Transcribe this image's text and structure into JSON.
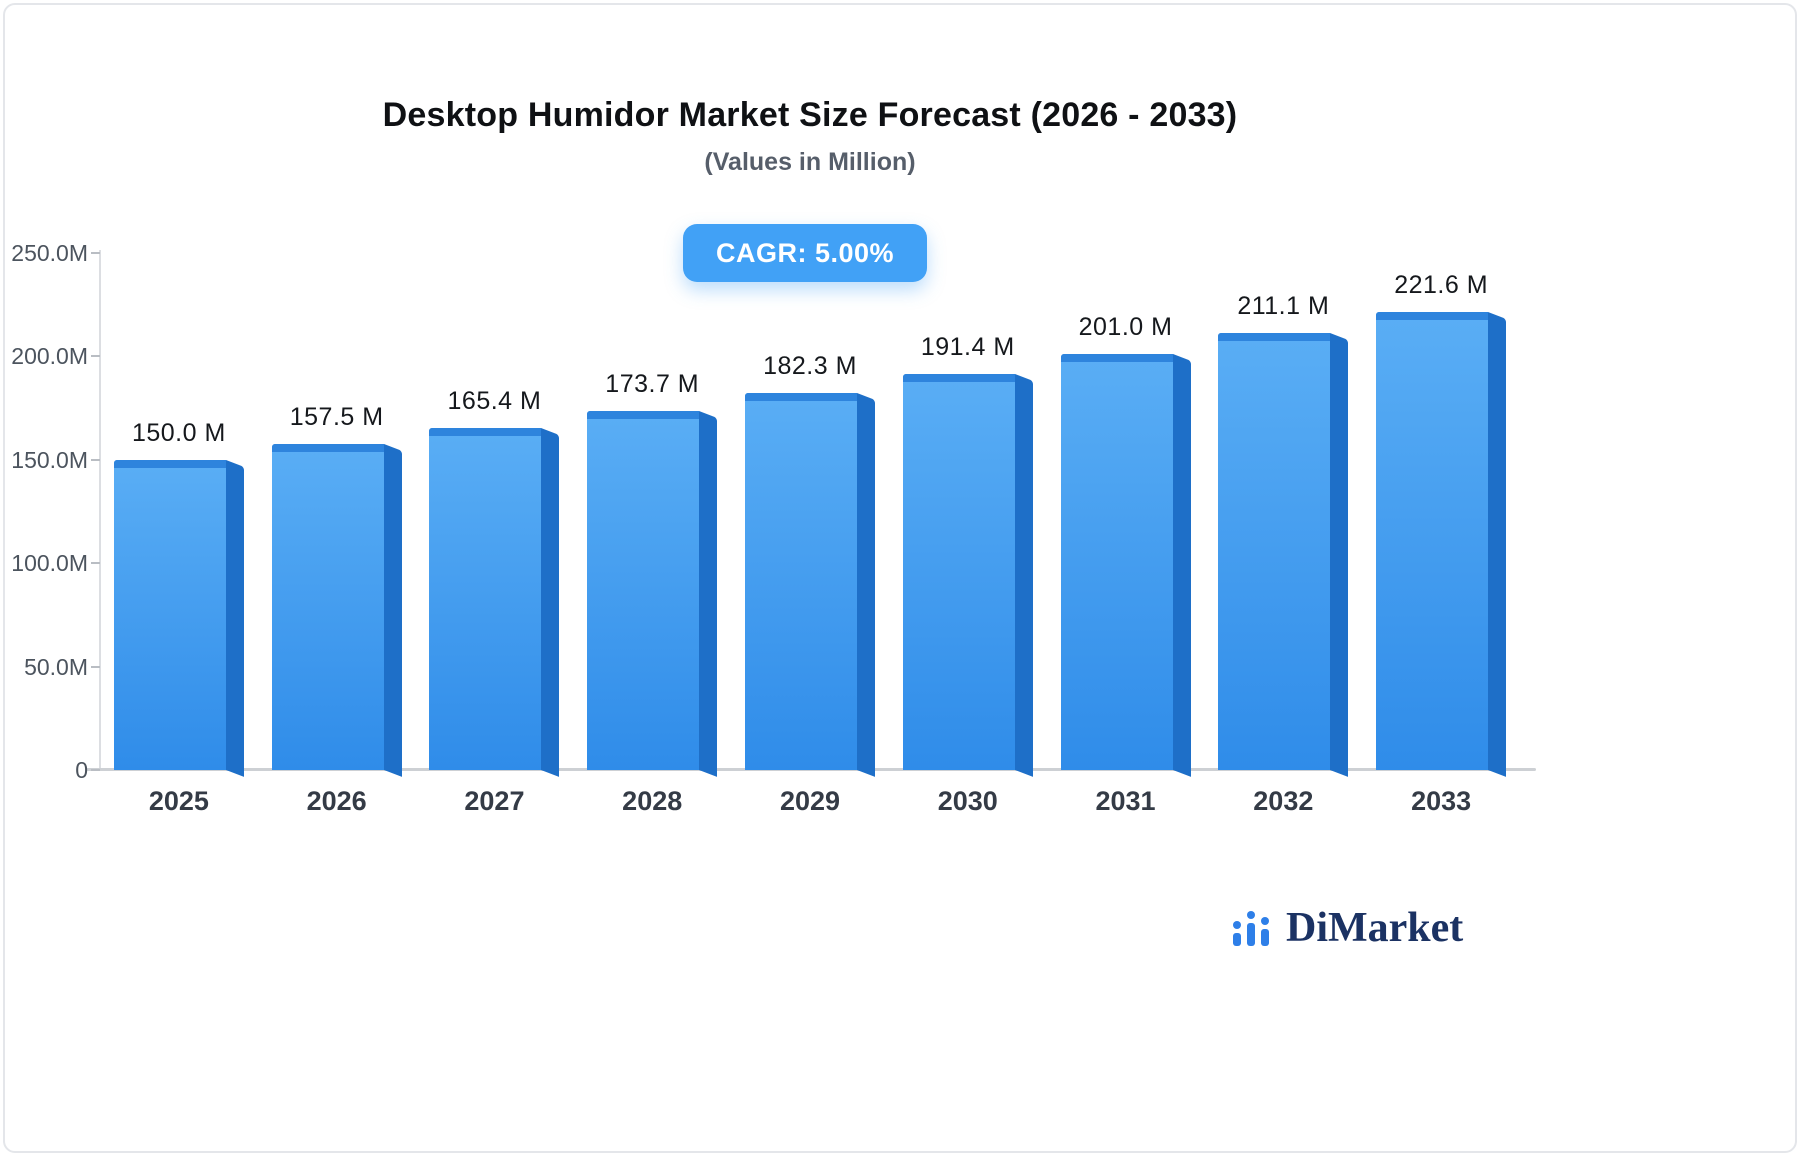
{
  "chart_data": {
    "type": "bar",
    "title": "Desktop Humidor Market Size Forecast (2026 - 2033)",
    "subtitle": "(Values in Million)",
    "annotation": "CAGR: 5.00%",
    "categories": [
      "2025",
      "2026",
      "2027",
      "2028",
      "2029",
      "2030",
      "2031",
      "2032",
      "2033"
    ],
    "values": [
      150.0,
      157.5,
      165.4,
      173.7,
      182.3,
      191.4,
      201.0,
      211.1,
      221.6
    ],
    "value_labels": [
      "150.0 M",
      "157.5 M",
      "165.4 M",
      "173.7 M",
      "182.3 M",
      "191.4 M",
      "201.0 M",
      "211.1 M",
      "221.6 M"
    ],
    "xlabel": "",
    "ylabel": "",
    "ylim": [
      0,
      250
    ],
    "yticks": [
      {
        "value": 0,
        "label": "0"
      },
      {
        "value": 50,
        "label": "50.0M"
      },
      {
        "value": 100,
        "label": "100.0M"
      },
      {
        "value": 150,
        "label": "150.0M"
      },
      {
        "value": 200,
        "label": "200.0M"
      },
      {
        "value": 250,
        "label": "250.0M"
      }
    ],
    "grid": false,
    "legend": null,
    "colors": {
      "bar_front_top": "#5aaef5",
      "bar_front_bottom": "#2f8ce9",
      "bar_side": "#1e6fc8",
      "bar_cap": "#2e84dd",
      "badge_bg": "#41a1f6",
      "axis": "#cdd0d4"
    }
  },
  "brand": {
    "name": "DiMarket",
    "icon": "bar-chart-logo-icon",
    "icon_color": "#2e7fe8",
    "text_color": "#1b3263"
  }
}
